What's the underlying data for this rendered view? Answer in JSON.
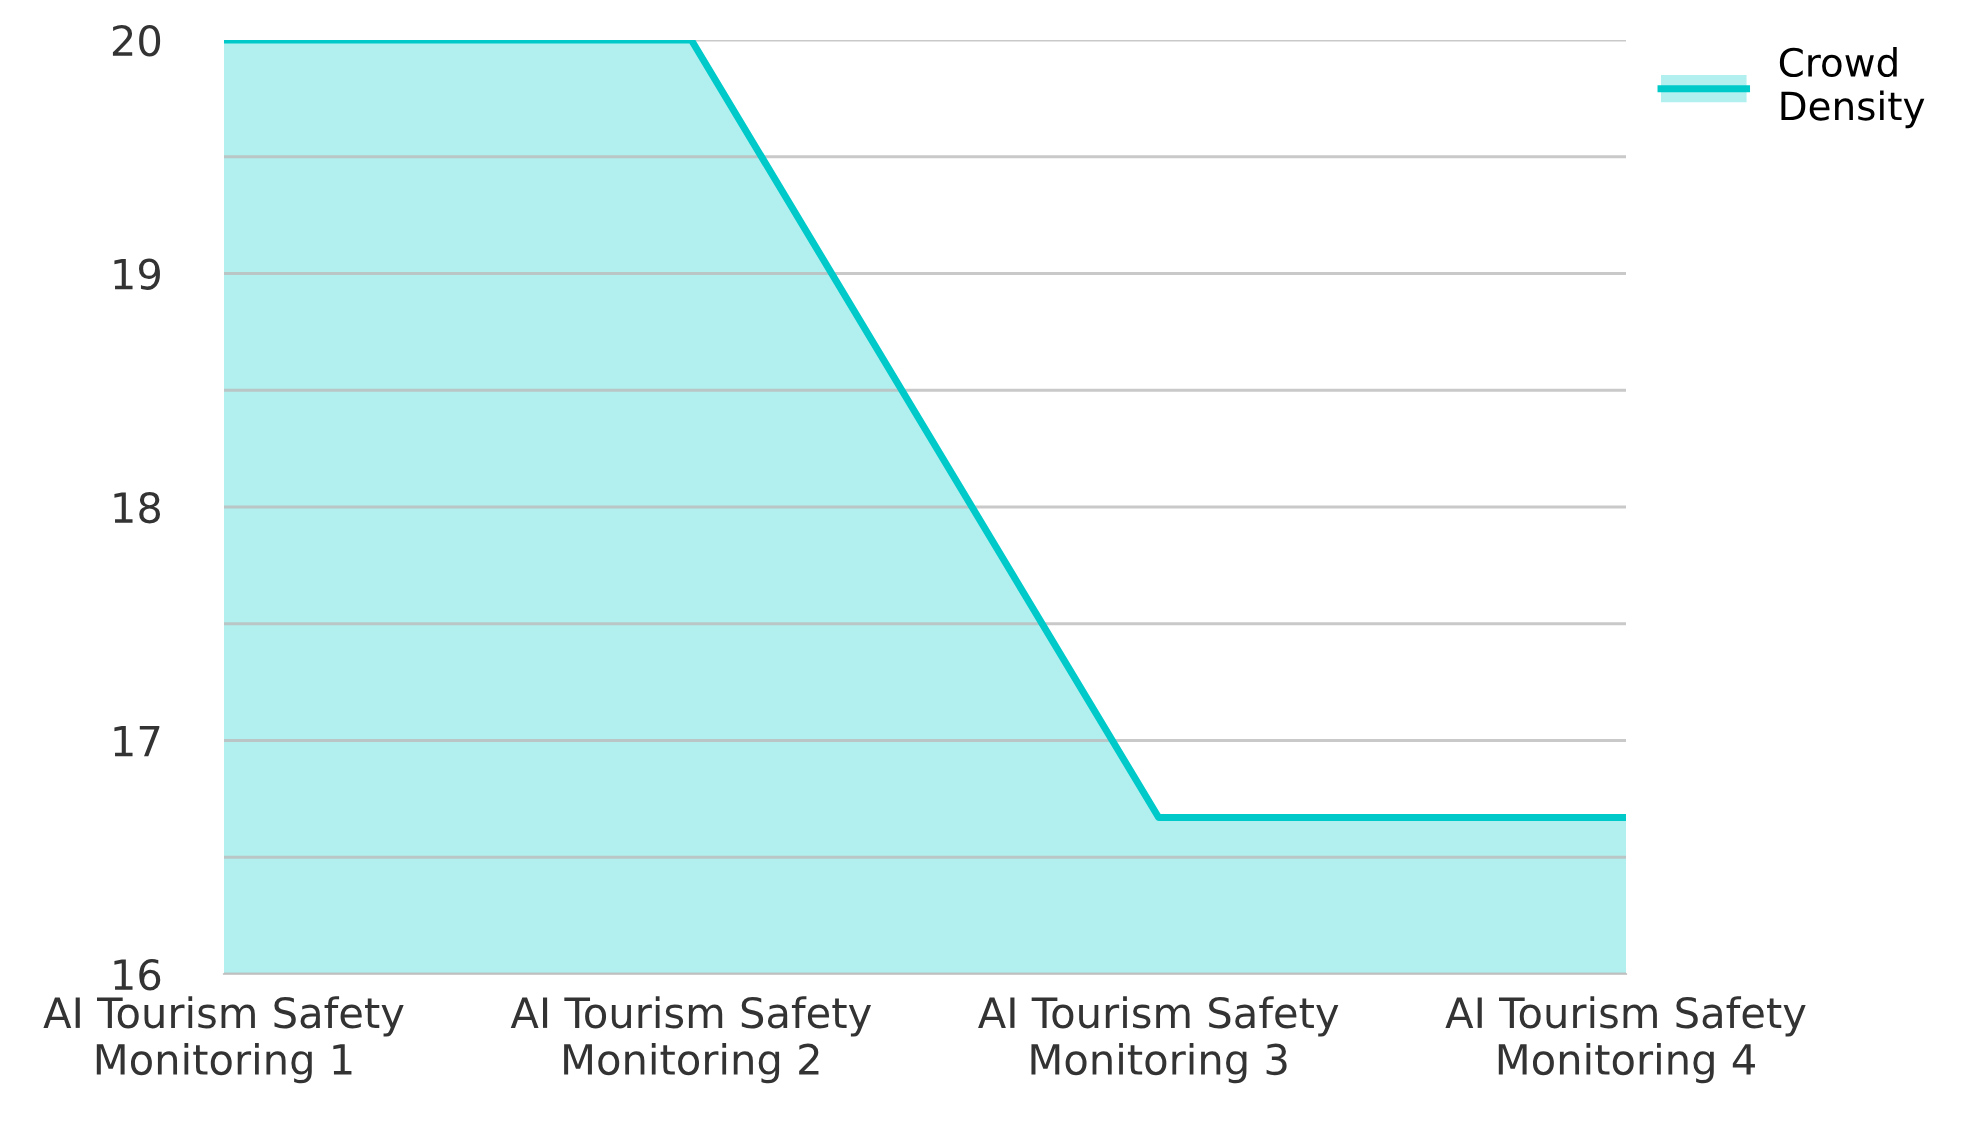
{
  "chart_data": {
    "type": "area",
    "categories": [
      "AI Tourism Safety\nMonitoring 1",
      "AI Tourism Safety\nMonitoring 2",
      "AI Tourism Safety\nMonitoring 3",
      "AI Tourism Safety\nMonitoring 4"
    ],
    "series": [
      {
        "name": "Crowd\nDensity",
        "color": "#00c9c9",
        "values": [
          20,
          20,
          16.67,
          16.67
        ]
      }
    ],
    "ylim": [
      16,
      20
    ],
    "yticks": [
      16,
      {
        "value": 16.5,
        "label": null
      },
      17,
      {
        "value": 17.5,
        "label": null
      },
      18,
      {
        "value": 18.5,
        "label": null
      },
      19,
      {
        "value": 19.5,
        "label": null
      },
      20
    ],
    "grid": "y",
    "legend": "top right",
    "marker": "none",
    "line_style": "solid"
  }
}
